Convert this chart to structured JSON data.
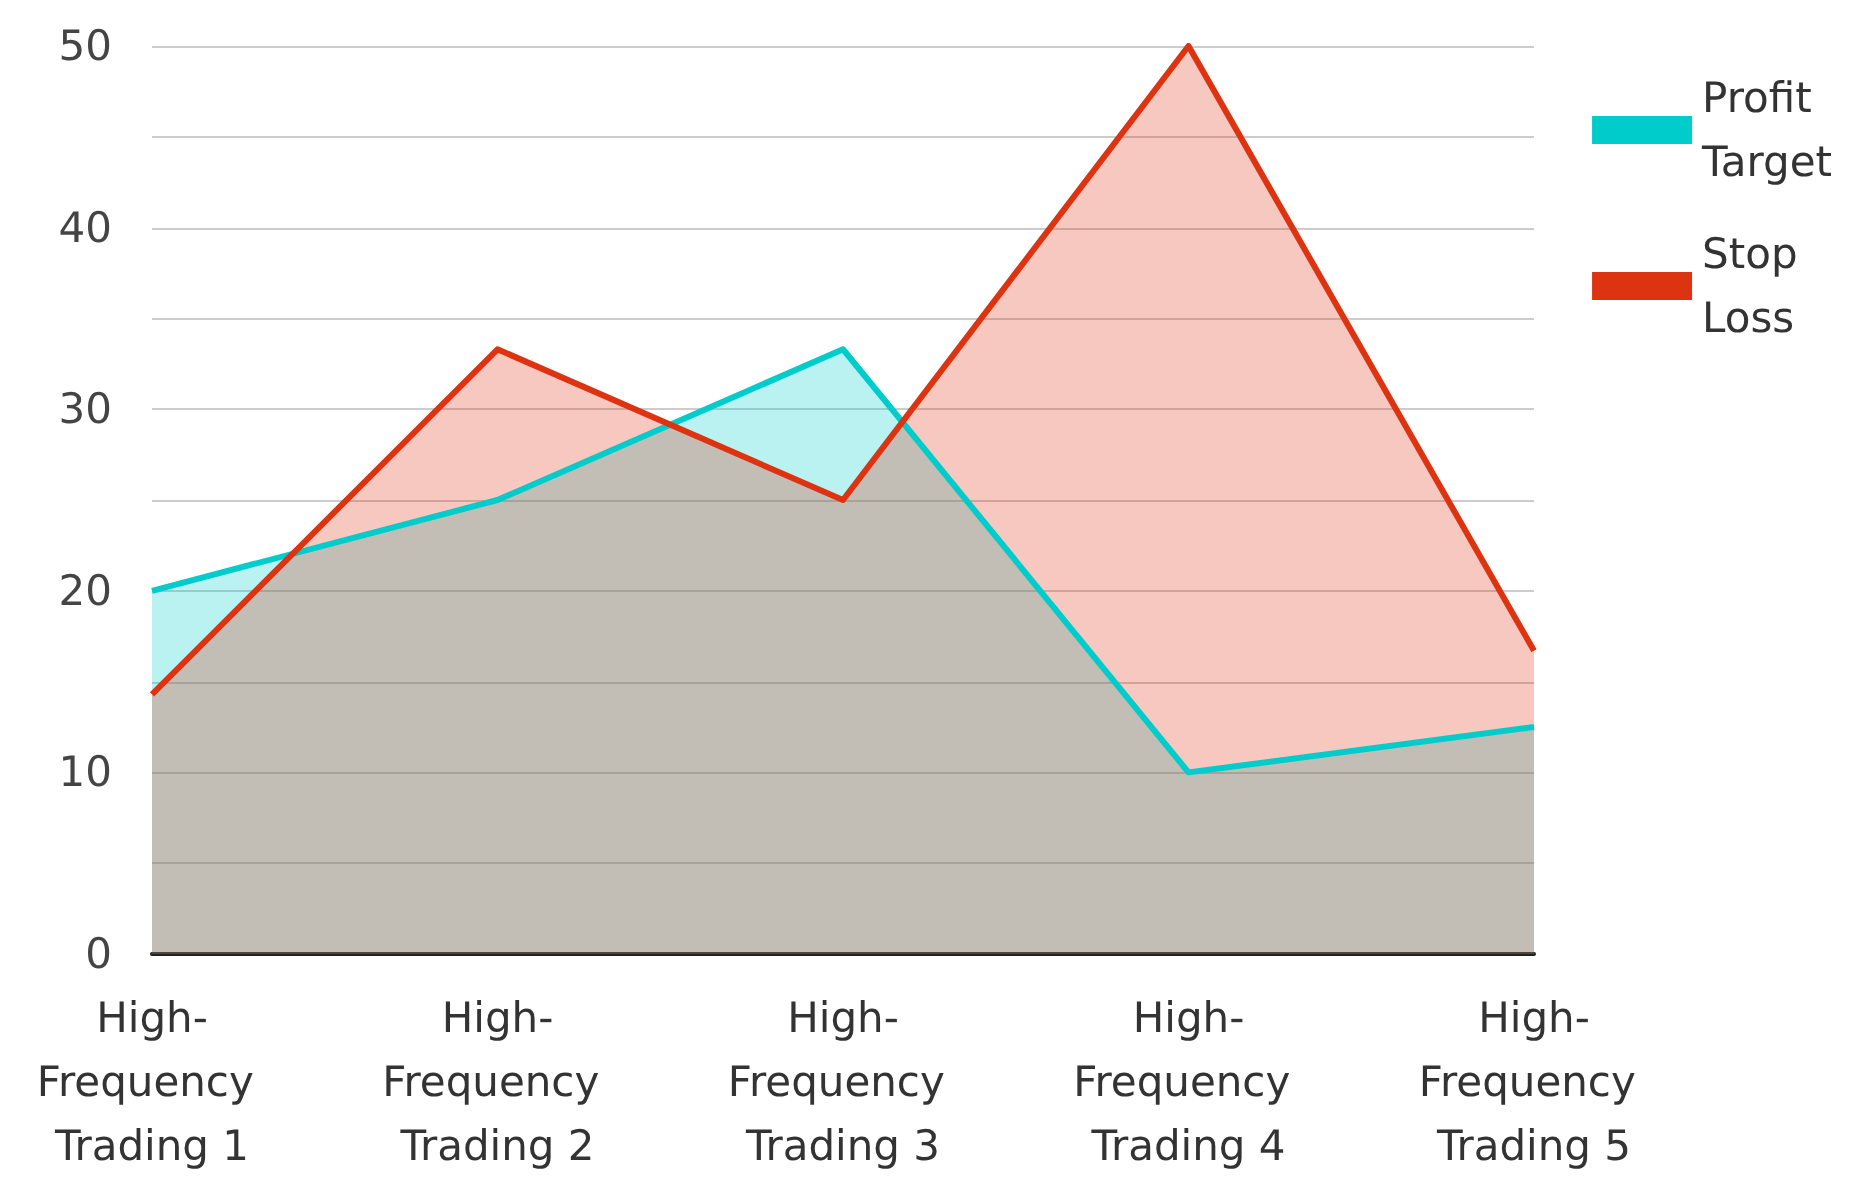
{
  "chart_data": {
    "type": "area",
    "categories": [
      "High-Frequency Trading 1",
      "High-Frequency Trading 2",
      "High-Frequency Trading 3",
      "High-Frequency Trading 4",
      "High-Frequency Trading 5"
    ],
    "series": [
      {
        "name": "Profit Target",
        "color": "#00cccc",
        "values": [
          20,
          25,
          33.3,
          10,
          12.5
        ]
      },
      {
        "name": "Stop Loss",
        "color": "#dd3311",
        "values": [
          14.3,
          33.3,
          25,
          50,
          16.7
        ]
      }
    ],
    "ylim": [
      0,
      50
    ],
    "yticks": [
      0,
      {
        "value": 5,
        "label": null
      },
      10,
      {
        "value": 15,
        "label": null
      },
      20,
      {
        "value": 25,
        "label": null
      },
      30,
      {
        "value": 35,
        "label": null
      },
      40,
      {
        "value": 45,
        "label": null
      },
      50
    ],
    "grid": "y",
    "legend": "top right",
    "marker": "none",
    "line_style": "solid"
  }
}
